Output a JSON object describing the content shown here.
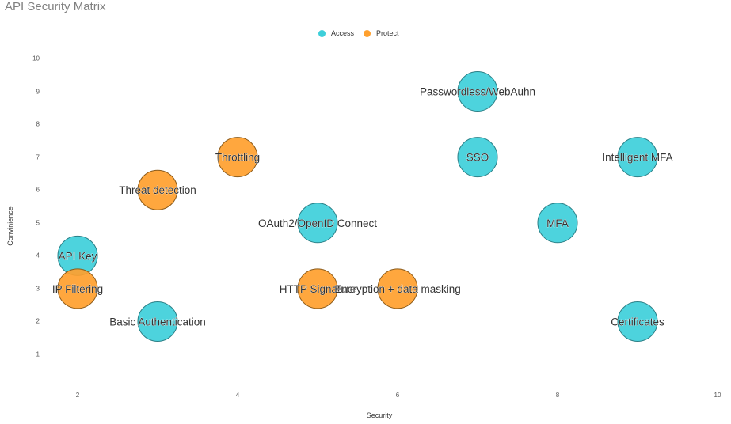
{
  "chart_data": {
    "type": "scatter",
    "subtype": "bubble",
    "title": "API Security Matrix",
    "xlabel": "Security",
    "ylabel": "Convinience",
    "xlim": [
      1.5,
      10
    ],
    "ylim": [
      0.5,
      10
    ],
    "x_ticks": [
      2,
      4,
      6,
      8,
      10
    ],
    "y_ticks": [
      1,
      2,
      3,
      4,
      5,
      6,
      7,
      8,
      9,
      10
    ],
    "grid": false,
    "legend": {
      "position": "top-center",
      "entries": [
        {
          "name": "Access",
          "color": "#3ECFDA"
        },
        {
          "name": "Protect",
          "color": "#FFA02E"
        }
      ]
    },
    "series": [
      {
        "name": "Access",
        "color": "#3ECFDA",
        "points": [
          {
            "label": "Passwordless/WebAuhn",
            "x": 7,
            "y": 9
          },
          {
            "label": "SSO",
            "x": 7,
            "y": 7
          },
          {
            "label": "Intelligent MFA",
            "x": 9,
            "y": 7
          },
          {
            "label": "OAuth2/OpenID Connect",
            "x": 5,
            "y": 5
          },
          {
            "label": "MFA",
            "x": 8,
            "y": 5
          },
          {
            "label": "API Key",
            "x": 2,
            "y": 4
          },
          {
            "label": "Basic Authentication",
            "x": 3,
            "y": 2
          },
          {
            "label": "Certificates",
            "x": 9,
            "y": 2
          }
        ]
      },
      {
        "name": "Protect",
        "color": "#FFA02E",
        "points": [
          {
            "label": "Throttling",
            "x": 4,
            "y": 7
          },
          {
            "label": "Threat detection",
            "x": 3,
            "y": 6
          },
          {
            "label": "IP Filtering",
            "x": 2,
            "y": 3
          },
          {
            "label": "HTTP Signature",
            "x": 5,
            "y": 3
          },
          {
            "label": "Encryption + data masking",
            "x": 6,
            "y": 3
          }
        ]
      }
    ]
  }
}
